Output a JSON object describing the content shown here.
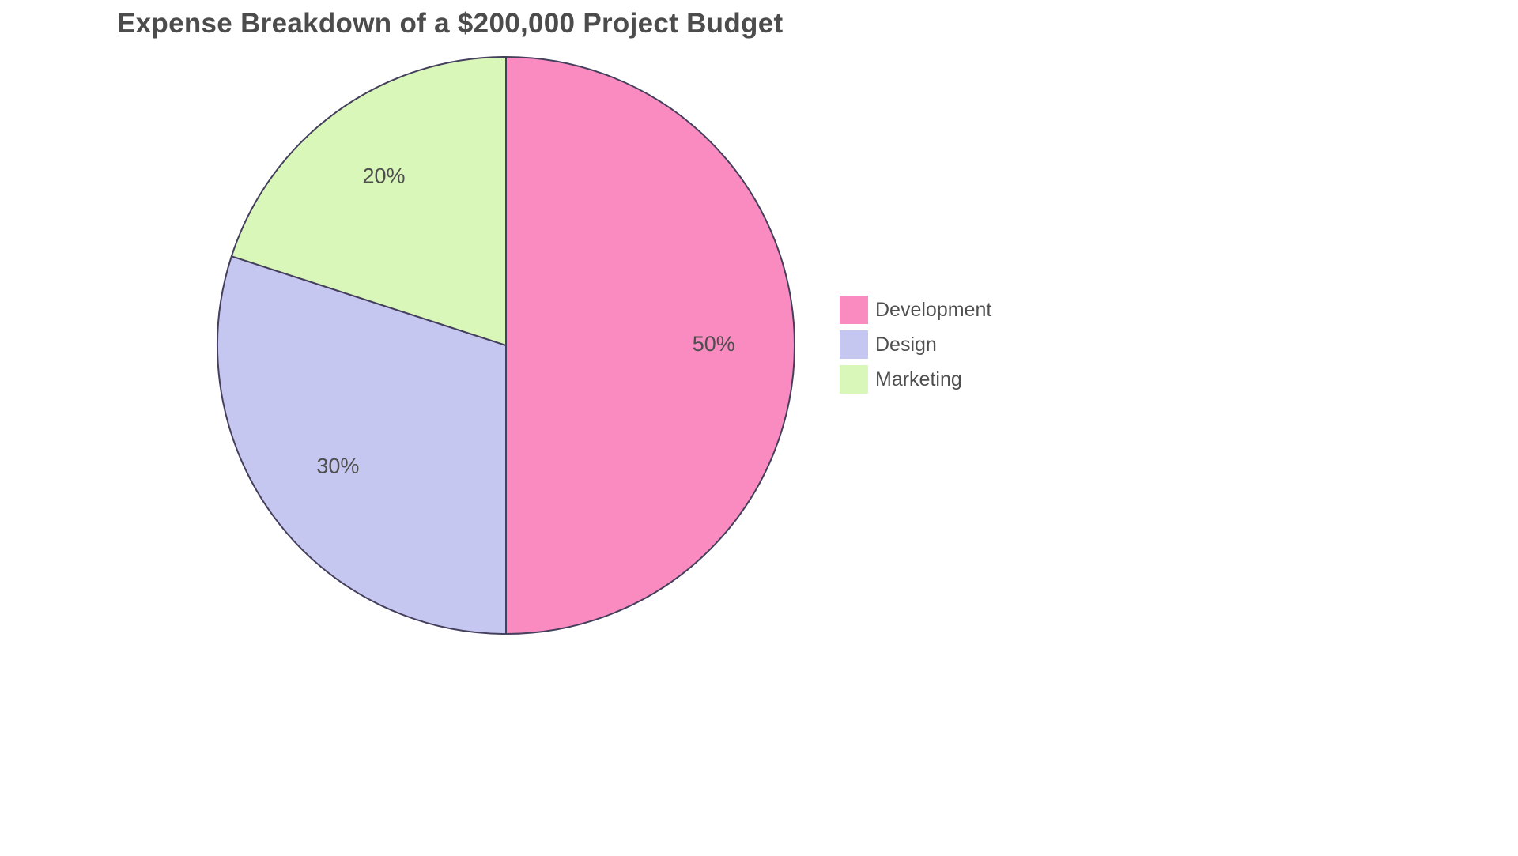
{
  "title": "Expense Breakdown of a $200,000 Project Budget",
  "chart_data": {
    "type": "pie",
    "title": "Expense Breakdown of a $200,000 Project Budget",
    "labels": [
      "Development",
      "Design",
      "Marketing"
    ],
    "values": [
      50,
      30,
      20
    ],
    "percent_labels": [
      "50%",
      "30%",
      "20%"
    ],
    "colors": [
      "#f98bc0",
      "#c6c7f0",
      "#d9f7b8"
    ],
    "stroke_color": "#443f5c",
    "label_color": "#4f4f4f",
    "legend_position": "right",
    "start_angle_deg": 0,
    "direction": "clockwise"
  },
  "legend": {
    "items": [
      {
        "label": "Development",
        "color": "#f98bc0"
      },
      {
        "label": "Design",
        "color": "#c6c7f0"
      },
      {
        "label": "Marketing",
        "color": "#d9f7b8"
      }
    ]
  }
}
